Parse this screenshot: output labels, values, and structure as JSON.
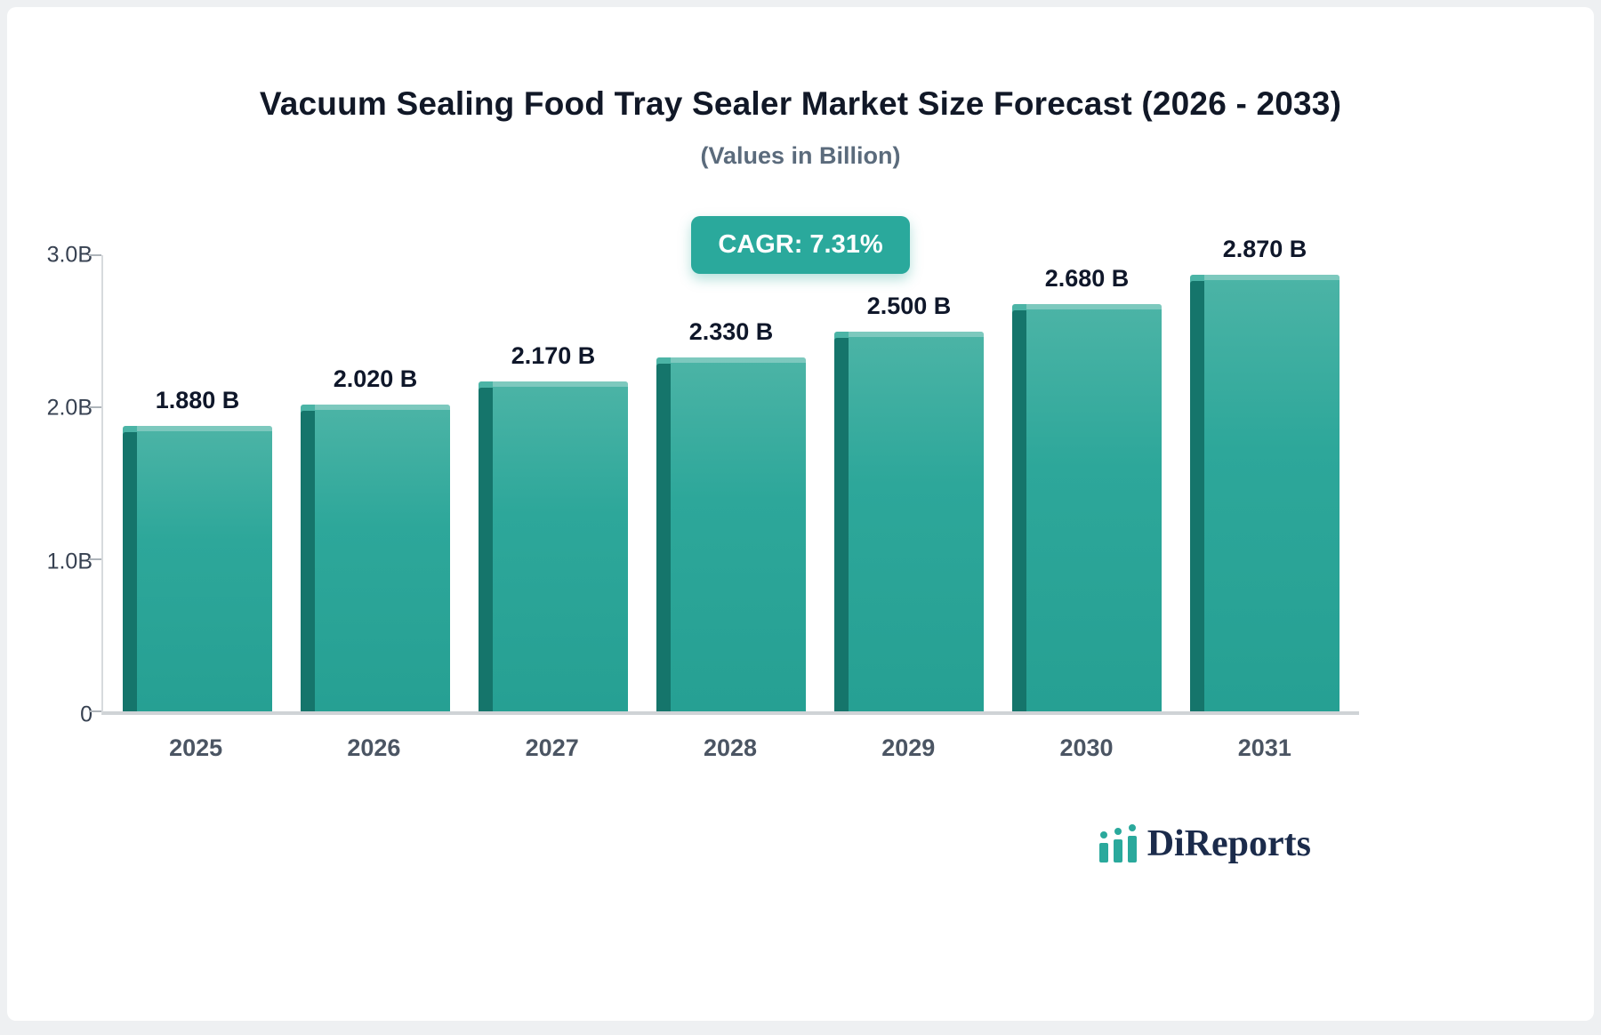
{
  "header": {
    "title": "Vacuum Sealing Food Tray Sealer Market Size Forecast (2026 - 2033)",
    "subtitle": "(Values in Billion)",
    "cagr_badge": "CAGR: 7.31%"
  },
  "chart_data": {
    "type": "bar",
    "title": "Vacuum Sealing Food Tray Sealer Market Size Forecast (2026 - 2033)",
    "subtitle": "(Values in Billion)",
    "categories": [
      "2025",
      "2026",
      "2027",
      "2028",
      "2029",
      "2030",
      "2031"
    ],
    "values": [
      1.88,
      2.02,
      2.17,
      2.33,
      2.5,
      2.68,
      2.87
    ],
    "value_labels": [
      "1.880 B",
      "2.020 B",
      "2.170 B",
      "2.330 B",
      "2.500 B",
      "2.680 B",
      "2.870 B"
    ],
    "xlabel": "",
    "ylabel": "",
    "ylim": [
      0,
      3
    ],
    "yticks": [
      "0",
      "1.0B",
      "2.0B",
      "3.0B"
    ],
    "grid": "off",
    "legend": "none",
    "annotation": "CAGR: 7.31%",
    "bar_color": "#2da79a",
    "bar_edge_color": "#15756b",
    "badge_color": "#2aa99c"
  },
  "logo": {
    "text": "DiReports",
    "icon": "bar-chart-icon",
    "icon_color": "#2aa99c",
    "text_color": "#1b2b4b"
  }
}
